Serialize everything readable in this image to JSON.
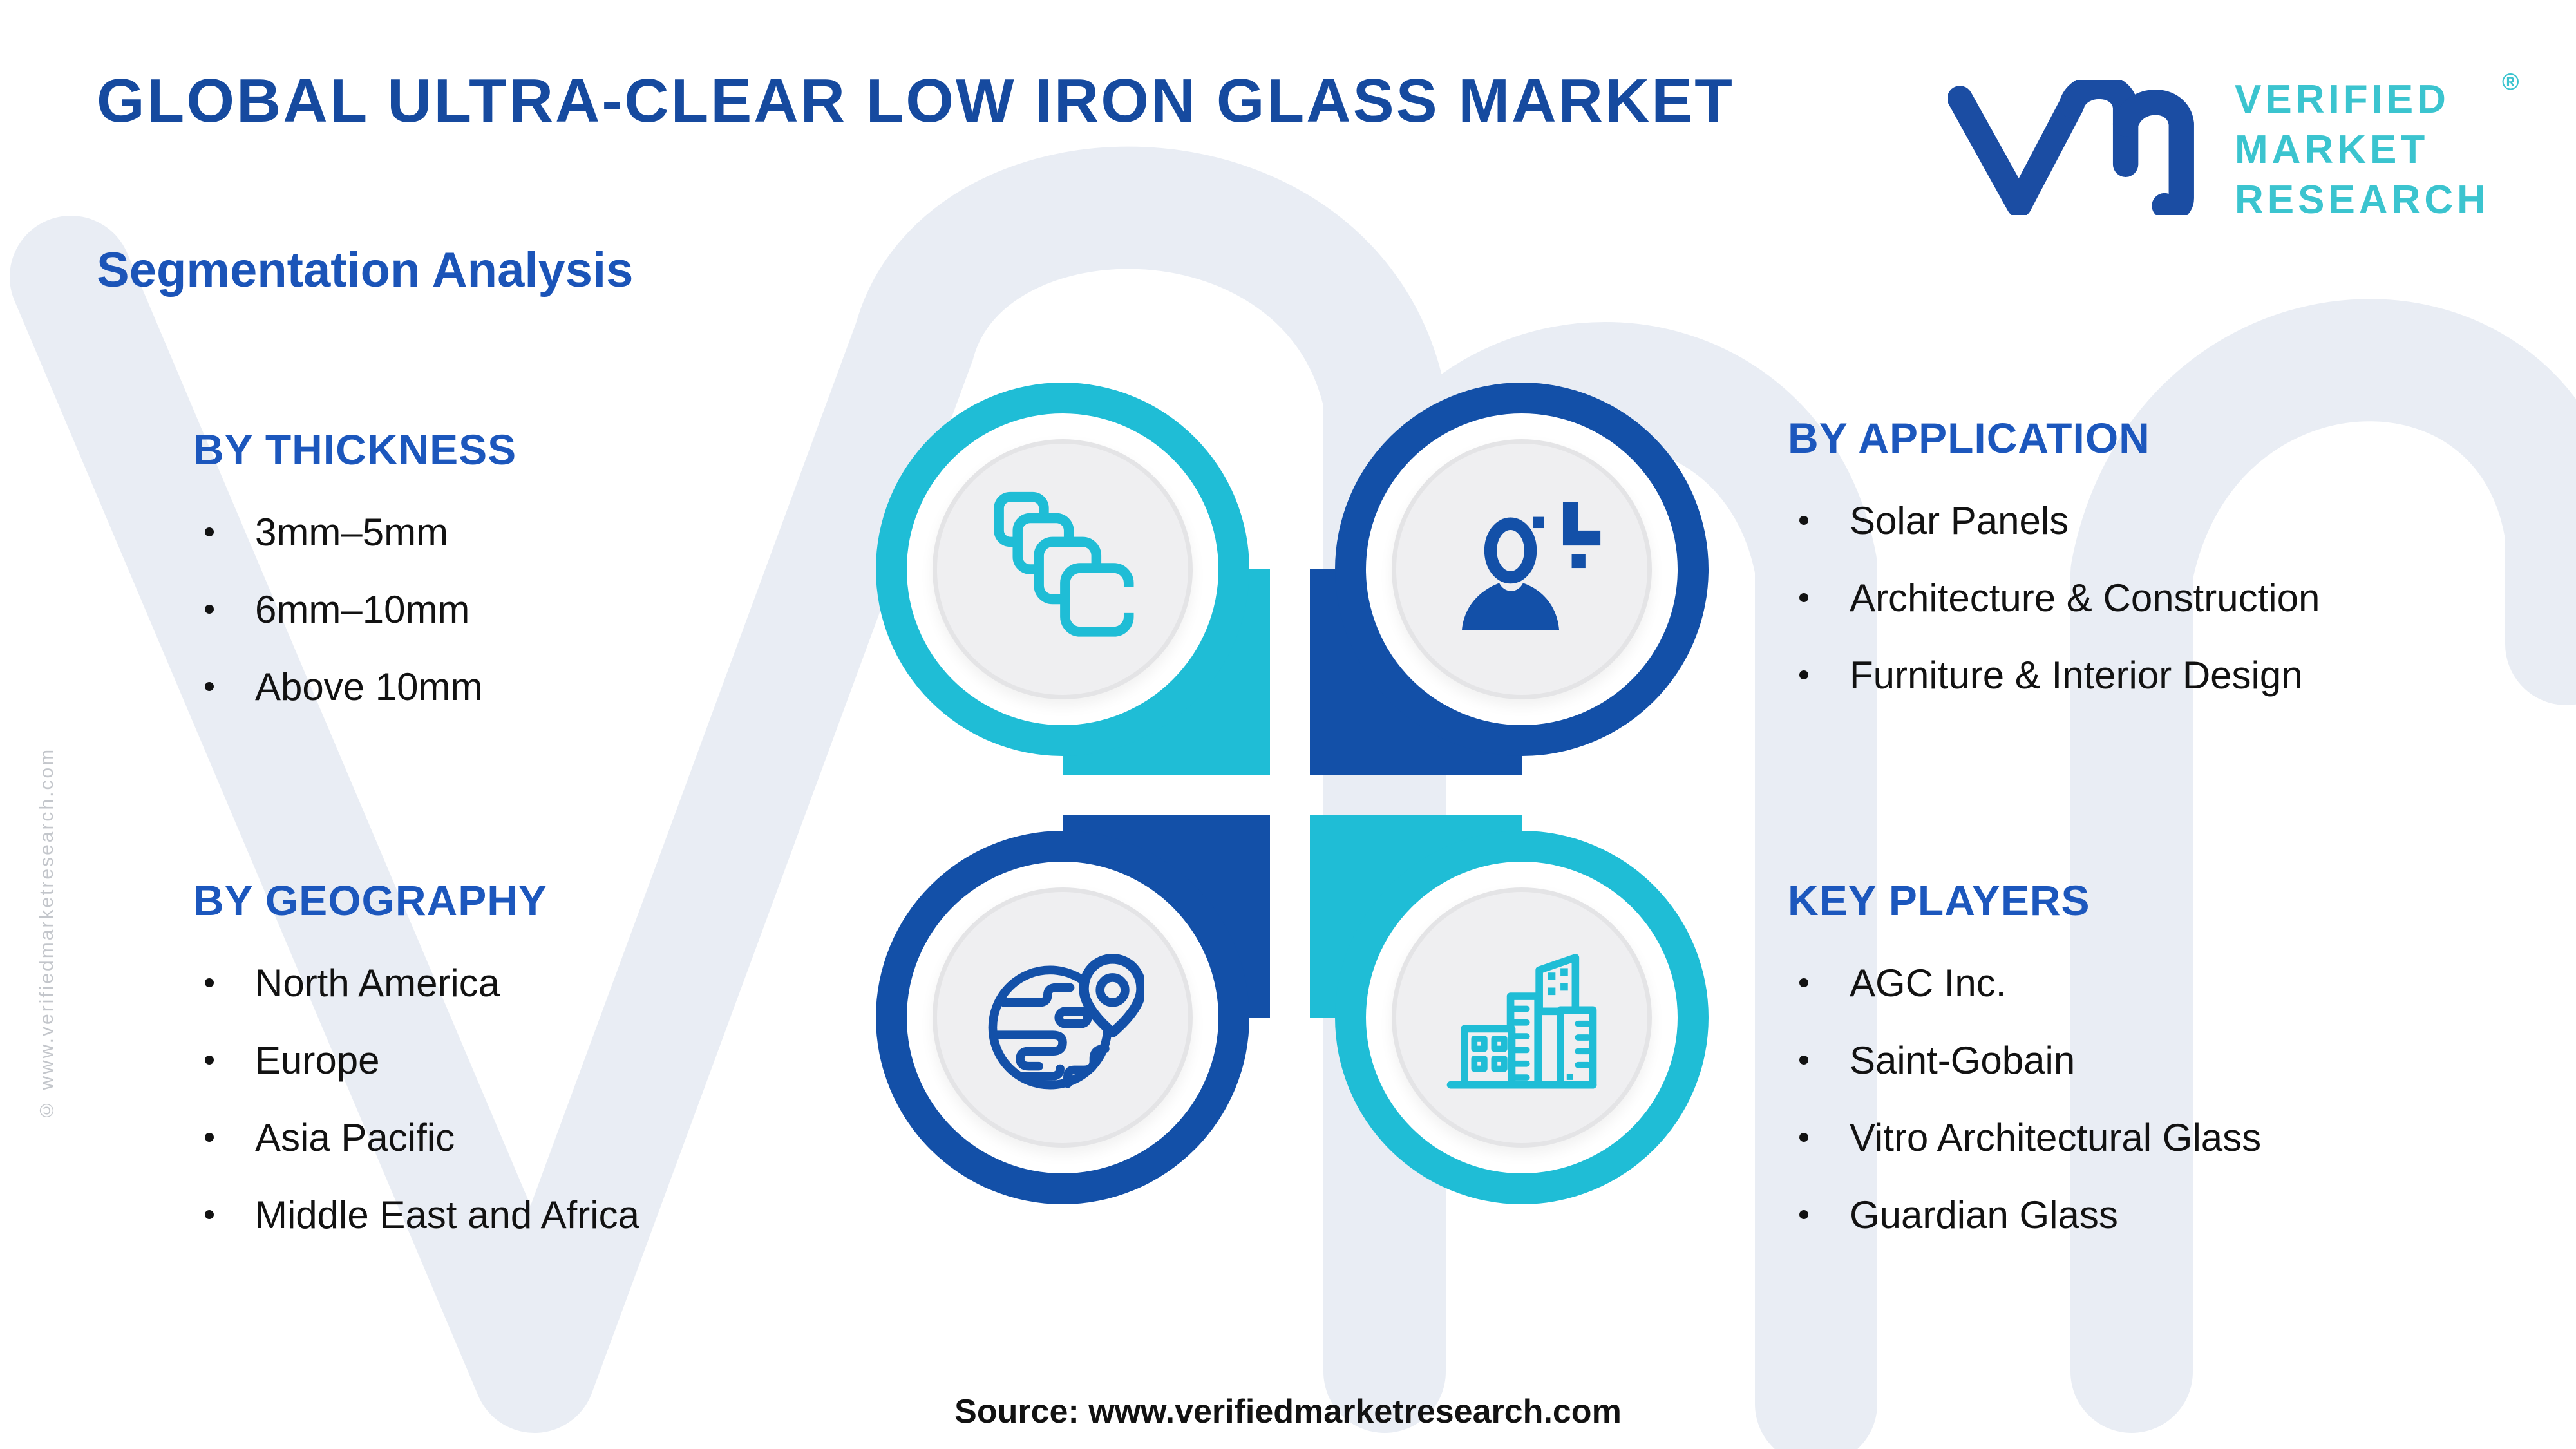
{
  "page": {
    "title": "GLOBAL ULTRA-CLEAR LOW IRON GLASS MARKET",
    "subtitle": "Segmentation Analysis"
  },
  "logo": {
    "lines": [
      "VERIFIED",
      "MARKET",
      "RESEARCH"
    ],
    "line1": "VERIFIED",
    "line2": "MARKET",
    "line3": "RESEARCH",
    "registered_mark": "®",
    "monogram": "vmr-monogram"
  },
  "sections": {
    "thickness": {
      "heading": "BY THICKNESS",
      "items": [
        "3mm–5mm",
        "6mm–10mm",
        "Above 10mm"
      ]
    },
    "application": {
      "heading": "BY APPLICATION",
      "items": [
        "Solar Panels",
        "Architecture & Construction",
        "Furniture & Interior Design"
      ]
    },
    "geography": {
      "heading": "BY GEOGRAPHY",
      "items": [
        "North America",
        "Europe",
        "Asia Pacific",
        "Middle East and Africa"
      ]
    },
    "key_players": {
      "heading": "KEY PLAYERS",
      "items": [
        "AGC Inc.",
        "Saint-Gobain",
        "Vitro Architectural Glass",
        "Guardian Glass"
      ]
    }
  },
  "quadrants": [
    {
      "section": "thickness",
      "icon": "glass-sheets-icon",
      "color": "cyan"
    },
    {
      "section": "application",
      "icon": "person-plus-icon",
      "color": "blue"
    },
    {
      "section": "geography",
      "icon": "globe-location-icon",
      "color": "blue"
    },
    {
      "section": "key_players",
      "icon": "buildings-icon",
      "color": "cyan"
    }
  ],
  "footer": {
    "source": "Source: www.verifiedmarketresearch.com"
  },
  "watermark": {
    "vertical_text": "© www.verifiedmarketresearch.com",
    "background_letters": "vmr"
  },
  "colors": {
    "title_blue": "#164a9f",
    "subtitle_blue": "#1b54b8",
    "heading_blue": "#1c57bd",
    "text_dark": "#121212",
    "cyan": "#1fbdd6",
    "quad_blue": "#1350a8",
    "logo_blue": "#1b4da3",
    "logo_teal": "#3bc4cf",
    "disc_gray": "#efeff1",
    "watermark": "#e9edf4",
    "copyright_gray": "#c3c6cb"
  }
}
